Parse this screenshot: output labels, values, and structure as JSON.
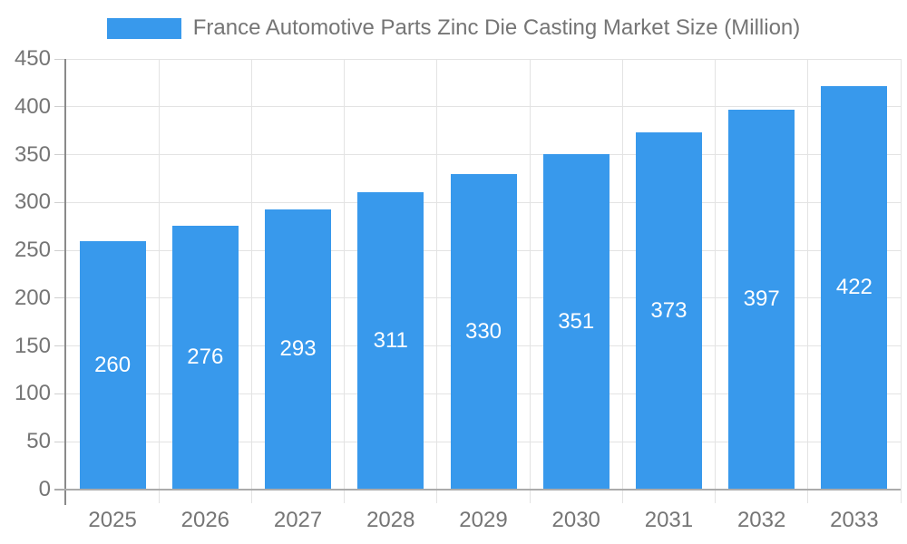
{
  "legend": {
    "swatch_color": "#3899EC",
    "label": "France Automotive Parts Zinc Die Casting Market Size (Million)"
  },
  "chart_data": {
    "type": "bar",
    "title": "France Automotive Parts Zinc Die Casting Market Size (Million)",
    "categories": [
      "2025",
      "2026",
      "2027",
      "2028",
      "2029",
      "2030",
      "2031",
      "2032",
      "2033"
    ],
    "values": [
      260,
      276,
      293,
      311,
      330,
      351,
      373,
      397,
      422
    ],
    "xlabel": "",
    "ylabel": "",
    "ylim": [
      0,
      450
    ],
    "ytick_step": 50,
    "yticks": [
      0,
      50,
      100,
      150,
      200,
      250,
      300,
      350,
      400,
      450
    ],
    "grid": true,
    "legend_position": "top",
    "data_labels": "inside-center",
    "colors": {
      "bar": "#3899EC",
      "grid": "#E3E3E3",
      "y_axis": "#8A8A8A",
      "x_axis": "#ABABAB",
      "tick_text": "#757575",
      "data_label_text": "#FFFFFF",
      "background": "#FFFFFF"
    }
  }
}
